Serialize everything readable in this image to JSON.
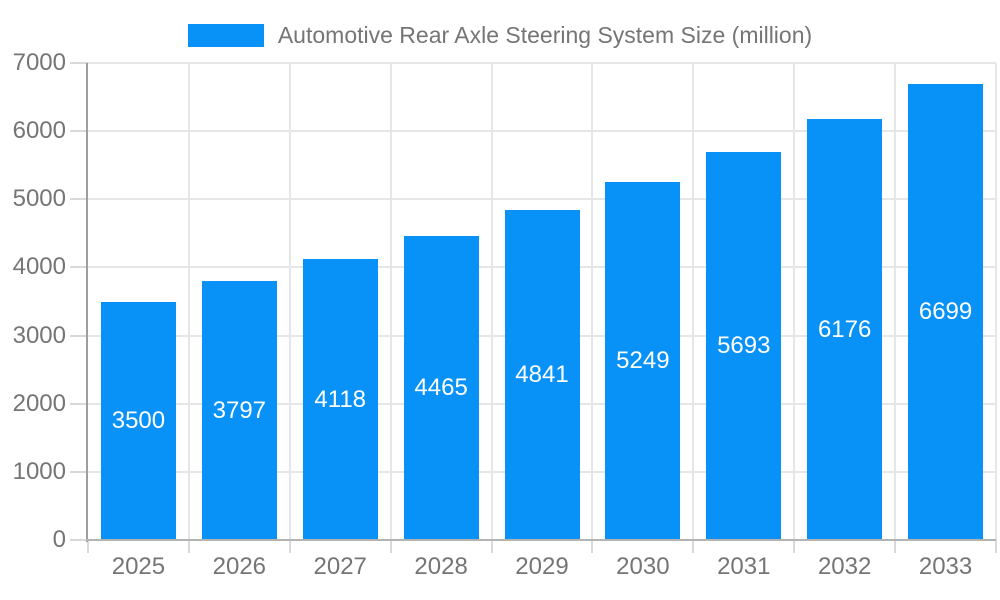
{
  "colors": {
    "bar": "#0892f8",
    "bar_label": "#ffffff",
    "axis_text": "#757575",
    "grid_line": "#e6e6e6",
    "tick_line": "#d9d9d9",
    "y_axis_line": "#9e9e9e",
    "x_axis_line": "#b3b3b3",
    "background": "#ffffff"
  },
  "legend": {
    "label": "Automotive Rear Axle Steering System Size (million)",
    "swatch_color": "#0892f8"
  },
  "chart_data": {
    "type": "bar",
    "title": "Automotive Rear Axle Steering System Size (million)",
    "series_name": "Automotive Rear Axle Steering System Size (million)",
    "categories": [
      "2025",
      "2026",
      "2027",
      "2028",
      "2029",
      "2030",
      "2031",
      "2032",
      "2033"
    ],
    "values": [
      3500,
      3797,
      4118,
      4465,
      4841,
      5249,
      5693,
      6176,
      6699
    ],
    "xlabel": "",
    "ylabel": "",
    "ylim": [
      0,
      7000
    ],
    "ytick_step": 1000,
    "yticks": [
      0,
      1000,
      2000,
      3000,
      4000,
      5000,
      6000,
      7000
    ],
    "grid": true,
    "legend_position": "top",
    "bar_labels_visible": true,
    "bar_label_position": "center-inside"
  }
}
